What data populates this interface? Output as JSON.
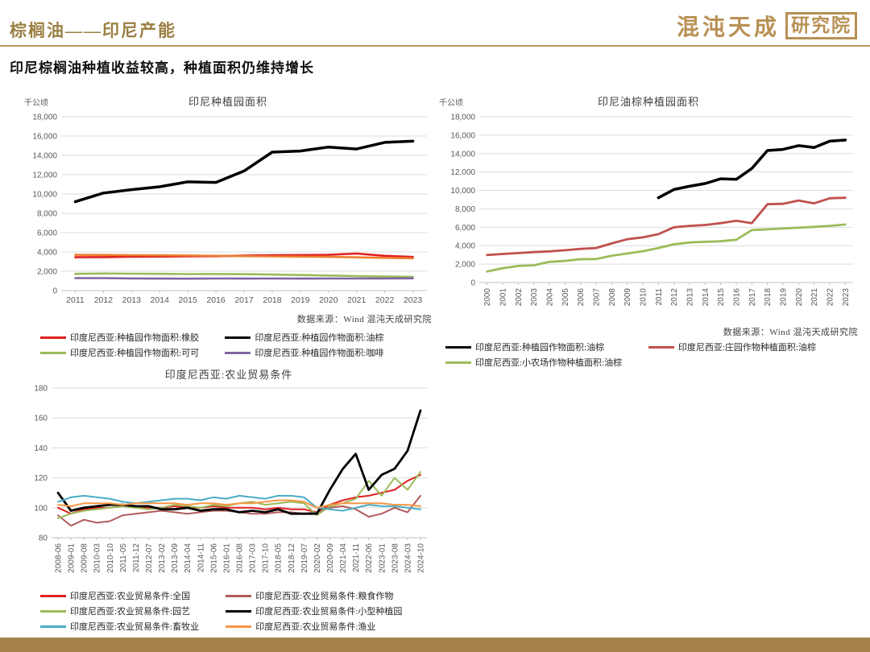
{
  "header": {
    "title": "棕榈油——印尼产能",
    "logo_script": "混沌天成",
    "logo_seal": "研究院"
  },
  "subtitle": "印尼棕榈油种植收益较高，种植面积仍维持增长",
  "colors": {
    "accent_gold": "#9b8044",
    "header_rule": "#b3985f",
    "footer_bar": "#a5824b",
    "logo_gold": "#b89155"
  },
  "chart_data": [
    {
      "type": "line",
      "title": "印尼种植园面积",
      "unit_label": "千公顷",
      "source": "数据来源：Wind 混沌天成研究院",
      "ylim": [
        0,
        18000
      ],
      "ytick_step": 2000,
      "y_format": "comma",
      "grid": true,
      "x_label_rotate": 0,
      "legend_position": "bottom",
      "categories": [
        "2011",
        "2012",
        "2013",
        "2014",
        "2015",
        "2016",
        "2017",
        "2018",
        "2019",
        "2020",
        "2021",
        "2022",
        "2023"
      ],
      "series": [
        {
          "name": "印度尼西亚:种植园作物面积:油棕",
          "color": "#000000",
          "width": 3.5,
          "values": [
            9200,
            10100,
            10450,
            10750,
            11260,
            11200,
            12380,
            14330,
            14450,
            14860,
            14660,
            15340,
            15470
          ]
        },
        {
          "name": "印度尼西亚:种植园作物面积:橡胶",
          "color": "#e02020",
          "width": 2.6,
          "values": [
            3450,
            3470,
            3500,
            3520,
            3540,
            3560,
            3620,
            3660,
            3680,
            3700,
            3830,
            3600,
            3480
          ]
        },
        {
          "name": "未标注系列(橙色)",
          "color": "#ed7d31",
          "width": 2.6,
          "values": [
            3700,
            3690,
            3670,
            3650,
            3630,
            3600,
            3570,
            3540,
            3520,
            3490,
            3440,
            3390,
            3340
          ]
        },
        {
          "name": "印度尼西亚:种植园作物面积:可可",
          "color": "#9bbb59",
          "width": 2.6,
          "values": [
            1730,
            1770,
            1750,
            1730,
            1710,
            1720,
            1700,
            1660,
            1610,
            1560,
            1500,
            1460,
            1420
          ]
        },
        {
          "name": "印度尼西亚:种植园作物面积:咖啡",
          "color": "#8064a2",
          "width": 2.6,
          "values": [
            1290,
            1290,
            1260,
            1240,
            1230,
            1250,
            1240,
            1250,
            1240,
            1250,
            1250,
            1260,
            1270
          ]
        }
      ],
      "legend": [
        {
          "label": "印度尼西亚:种植园作物面积:橡胶",
          "color": "#e02020"
        },
        {
          "label": "印度尼西亚:种植园作物面积:油棕",
          "color": "#000000"
        },
        {
          "label": "印度尼西亚:种植园作物面积:可可",
          "color": "#9bbb59"
        },
        {
          "label": "印度尼西亚:种植园作物面积:咖啡",
          "color": "#8064a2"
        }
      ]
    },
    {
      "type": "line",
      "title": "印尼油棕种植园面积",
      "unit_label": "千公顷",
      "source": "数据来源：Wind  混沌天成研究院",
      "ylim": [
        0,
        18000
      ],
      "ytick_step": 2000,
      "y_format": "comma",
      "grid": true,
      "x_label_rotate": 90,
      "legend_position": "bottom",
      "categories": [
        "2000",
        "2001",
        "2002",
        "2003",
        "2004",
        "2005",
        "2006",
        "2007",
        "2008",
        "2009",
        "2010",
        "2011",
        "2012",
        "2013",
        "2014",
        "2015",
        "2016",
        "2017",
        "2018",
        "2019",
        "2020",
        "2021",
        "2022",
        "2023"
      ],
      "series": [
        {
          "name": "印度尼西亚:种植园作物面积:油棕",
          "color": "#000000",
          "width": 3.5,
          "values": [
            null,
            null,
            null,
            null,
            null,
            null,
            null,
            null,
            null,
            null,
            null,
            9200,
            10100,
            10450,
            10750,
            11260,
            11200,
            12380,
            14330,
            14450,
            14860,
            14660,
            15340,
            15470
          ]
        },
        {
          "name": "印度尼西亚:庄园作物种植面积:油棕",
          "color": "#c0504d",
          "width": 2.8,
          "values": [
            2991,
            3100,
            3200,
            3300,
            3380,
            3500,
            3650,
            3750,
            4250,
            4700,
            4900,
            5250,
            6000,
            6150,
            6250,
            6450,
            6700,
            6450,
            8500,
            8550,
            8900,
            8600,
            9150,
            9200
          ]
        },
        {
          "name": "印度尼西亚:小农场作物种植面积:油棕",
          "color": "#9bbb59",
          "width": 2.8,
          "values": [
            1200,
            1550,
            1800,
            1870,
            2250,
            2350,
            2530,
            2550,
            2900,
            3150,
            3400,
            3750,
            4150,
            4350,
            4420,
            4480,
            4650,
            5700,
            5780,
            5860,
            5950,
            6050,
            6150,
            6300
          ]
        }
      ],
      "legend": [
        {
          "label": "印度尼西亚:种植园作物面积:油棕",
          "color": "#000000"
        },
        {
          "label": "印度尼西亚:庄园作物种植面积:油棕",
          "color": "#c0504d"
        },
        {
          "label": "印度尼西亚:小农场作物种植面积:油棕",
          "color": "#9bbb59"
        }
      ]
    },
    {
      "type": "line",
      "title": "印度尼西亚:农业贸易条件",
      "unit_label": "",
      "source": "",
      "ylim": [
        80,
        180
      ],
      "ytick_step": 20,
      "y_format": "plain",
      "grid": true,
      "x_label_rotate": 90,
      "legend_position": "bottom",
      "categories": [
        "2008-06",
        "2009-01",
        "2009-08",
        "2010-03",
        "2010-10",
        "2011-05",
        "2011-12",
        "2012-07",
        "2013-02",
        "2013-09",
        "2014-04",
        "2014-11",
        "2015-06",
        "2016-01",
        "2016-08",
        "2017-03",
        "2017-10",
        "2018-05",
        "2018-12",
        "2019-07",
        "2020-02",
        "2020-09",
        "2021-04",
        "2021-11",
        "2022-06",
        "2023-01",
        "2023-08",
        "2024-03",
        "2024-10"
      ],
      "series": [
        {
          "name": "印度尼西亚:农业贸易条件:全国",
          "color": "#e02020",
          "width": 2,
          "values": [
            100,
            96,
            99,
            100,
            100,
            101,
            100,
            100,
            100,
            101,
            100,
            100,
            101,
            100,
            100,
            100,
            99,
            100,
            99,
            99,
            97,
            102,
            105,
            107,
            108,
            110,
            112,
            118,
            122
          ]
        },
        {
          "name": "印度尼西亚:农业贸易条件:粮食作物",
          "color": "#b25b5b",
          "width": 2,
          "values": [
            95,
            88,
            92,
            90,
            91,
            95,
            96,
            97,
            98,
            97,
            96,
            97,
            98,
            98,
            97,
            96,
            96,
            97,
            97,
            96,
            97,
            100,
            101,
            99,
            94,
            96,
            100,
            97,
            108
          ]
        },
        {
          "name": "印度尼西亚:农业贸易条件:园艺",
          "color": "#9bbb59",
          "width": 2,
          "values": [
            93,
            96,
            98,
            99,
            100,
            101,
            100,
            99,
            100,
            102,
            101,
            100,
            102,
            101,
            103,
            104,
            102,
            103,
            104,
            103,
            95,
            101,
            103,
            106,
            118,
            108,
            120,
            112,
            124
          ]
        },
        {
          "name": "印度尼西亚:农业贸易条件:小型种植园",
          "color": "#000000",
          "width": 2.8,
          "values": [
            110,
            98,
            100,
            101,
            102,
            102,
            101,
            101,
            99,
            99,
            100,
            98,
            99,
            99,
            97,
            98,
            97,
            99,
            96,
            96,
            96,
            112,
            126,
            136,
            112,
            122,
            126,
            138,
            165
          ]
        },
        {
          "name": "印度尼西亚:农业贸易条件:畜牧业",
          "color": "#4bacc6",
          "width": 2,
          "values": [
            104,
            107,
            108,
            107,
            106,
            104,
            103,
            104,
            105,
            106,
            106,
            105,
            107,
            106,
            108,
            107,
            106,
            108,
            108,
            107,
            100,
            99,
            98,
            100,
            102,
            101,
            101,
            100,
            99
          ]
        },
        {
          "name": "印度尼西亚:农业贸易条件:渔业",
          "color": "#f79646",
          "width": 2,
          "values": [
            102,
            101,
            103,
            103,
            103,
            102,
            103,
            103,
            103,
            103,
            102,
            103,
            103,
            102,
            103,
            103,
            104,
            105,
            105,
            104,
            100,
            102,
            103,
            103,
            103,
            103,
            102,
            102,
            101
          ]
        }
      ],
      "legend": [
        {
          "label": "印度尼西亚:农业贸易条件:全国",
          "color": "#e02020"
        },
        {
          "label": "印度尼西亚:农业贸易条件:粮食作物",
          "color": "#b25b5b"
        },
        {
          "label": "印度尼西亚:农业贸易条件:园艺",
          "color": "#9bbb59"
        },
        {
          "label": "印度尼西亚:农业贸易条件:小型种植园",
          "color": "#000000"
        },
        {
          "label": "印度尼西亚:农业贸易条件:畜牧业",
          "color": "#4bacc6"
        },
        {
          "label": "印度尼西亚:农业贸易条件:渔业",
          "color": "#f79646"
        }
      ]
    }
  ]
}
